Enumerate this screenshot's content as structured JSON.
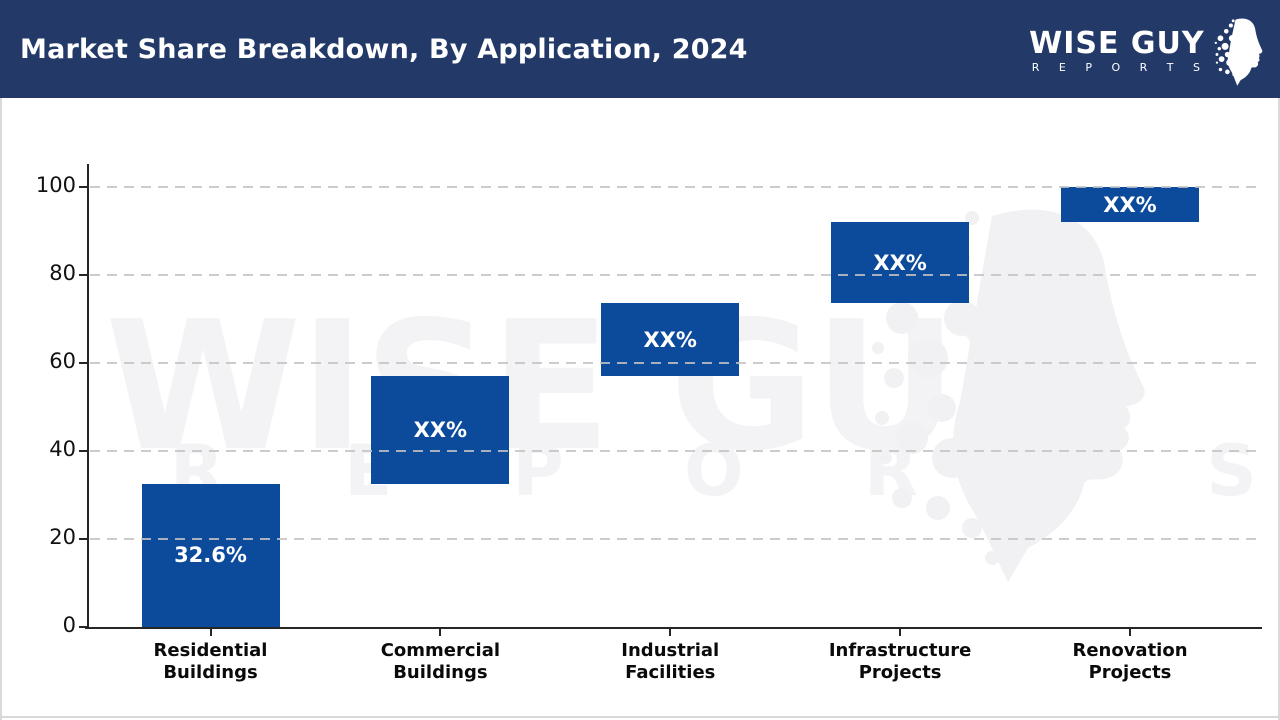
{
  "header": {
    "title": "Market Share Breakdown, By Application, 2024",
    "logo": {
      "line1": "WISE GUY",
      "line2": "R E P O R T S"
    }
  },
  "watermark": {
    "line1": "WISE GUY",
    "line2": "R E P O R T S"
  },
  "colors": {
    "header_bg": "#233A69",
    "bar": "#0C4A9C",
    "bar_label": "#ffffff",
    "gridline": "#d9d9d9",
    "axis": "#262626",
    "watermark": "#f3f3f5"
  },
  "chart_data": {
    "type": "bar",
    "subtype": "waterfall",
    "title": "Market Share Breakdown, By Application, 2024",
    "categories": [
      "Residential Buildings",
      "Commercial Buildings",
      "Industrial Facilities",
      "Infrastructure Projects",
      "Renovation Projects"
    ],
    "starts": [
      0,
      32.6,
      57,
      73.6,
      92
    ],
    "ends": [
      32.6,
      57,
      73.6,
      92,
      100
    ],
    "values": [
      32.6,
      24.4,
      16.6,
      18.4,
      8
    ],
    "labels": [
      "32.6%",
      "XX%",
      "XX%",
      "XX%",
      "XX%"
    ],
    "xlabel": "",
    "ylabel": "",
    "ylim": [
      0,
      100
    ],
    "yticks": [
      0,
      20,
      40,
      60,
      80,
      100
    ],
    "grid": "horizontal dashed",
    "legend": false
  }
}
